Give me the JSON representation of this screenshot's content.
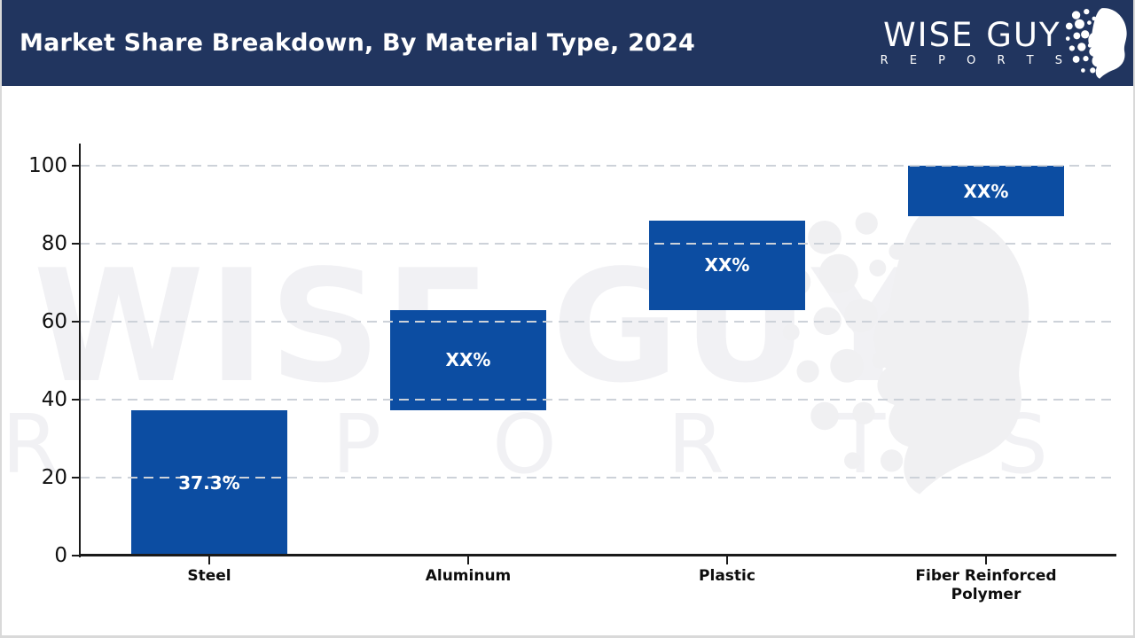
{
  "header": {
    "title": "Market Share Breakdown, By Material Type, 2024",
    "logo": {
      "line1": "WISE GUY",
      "line2": "R E P O R T S"
    }
  },
  "watermark": {
    "line1": "WISE GUY",
    "line2": "R E P O R T S"
  },
  "chart_data": {
    "type": "bar",
    "subtype": "waterfall",
    "title": "Market Share Breakdown, By Material Type, 2024",
    "categories": [
      "Steel",
      "Aluminum",
      "Plastic",
      "Fiber Reinforced Polymer"
    ],
    "bars": [
      {
        "category": "Steel",
        "start": 0,
        "end": 37.3,
        "label": "37.3%"
      },
      {
        "category": "Aluminum",
        "start": 37.3,
        "end": 63,
        "label": "XX%"
      },
      {
        "category": "Plastic",
        "start": 63,
        "end": 86,
        "label": "XX%"
      },
      {
        "category": "Fiber Reinforced Polymer",
        "start": 87,
        "end": 100,
        "label": "XX%"
      }
    ],
    "xlabel": "",
    "ylabel": "",
    "ylim": [
      0,
      105
    ],
    "yticks": [
      0,
      20,
      40,
      60,
      80,
      100
    ],
    "grid": "horizontal-dashed",
    "legend": "none"
  },
  "colors": {
    "header_bg": "#21355f",
    "title_text": "#ffffff",
    "bar": "#0c4da2",
    "bar_label": "#ffffff",
    "grid": "#cdd2d9",
    "axis": "#1a1a1a",
    "watermark": "#f1f1f4"
  }
}
